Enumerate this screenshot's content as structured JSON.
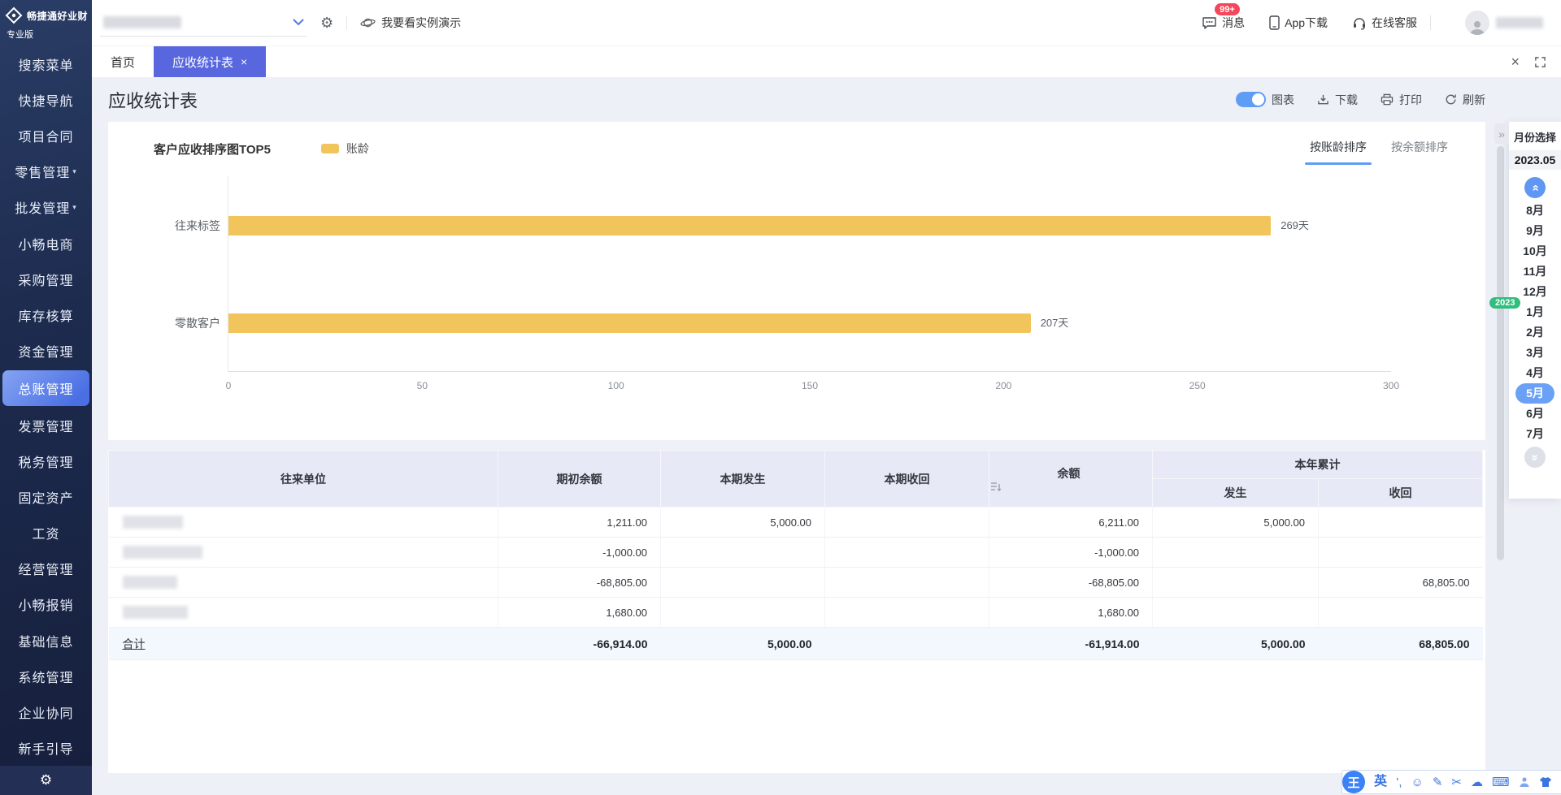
{
  "app": {
    "brand": "畅捷通好业财",
    "edition": "专业版"
  },
  "topbar": {
    "demo": "我要看实例演示",
    "messages": "消息",
    "messages_badge": "99+",
    "app_download": "App下载",
    "online_service": "在线客服"
  },
  "sidebar": {
    "items": [
      {
        "label": "搜索菜单"
      },
      {
        "label": "快捷导航"
      },
      {
        "label": "项目合同"
      },
      {
        "label": "零售管理",
        "caret": true
      },
      {
        "label": "批发管理",
        "caret": true
      },
      {
        "label": "小畅电商"
      },
      {
        "label": "采购管理"
      },
      {
        "label": "库存核算"
      },
      {
        "label": "资金管理"
      },
      {
        "label": "总账管理",
        "active": true
      },
      {
        "label": "发票管理"
      },
      {
        "label": "税务管理"
      },
      {
        "label": "固定资产"
      },
      {
        "label": "工资"
      },
      {
        "label": "经营管理"
      },
      {
        "label": "小畅报销"
      },
      {
        "label": "基础信息"
      },
      {
        "label": "系统管理"
      },
      {
        "label": "企业协同"
      },
      {
        "label": "新手引导"
      }
    ]
  },
  "tabs": {
    "home": "首页",
    "current": "应收统计表"
  },
  "page": {
    "title": "应收统计表"
  },
  "toolbar": {
    "chart_toggle": "图表",
    "download": "下载",
    "print": "打印",
    "refresh": "刷新"
  },
  "chart_data": {
    "type": "bar",
    "orientation": "horizontal",
    "title": "客户应收排序图TOP5",
    "legend": [
      "账龄"
    ],
    "categories": [
      "往来标签",
      "零散客户"
    ],
    "values": [
      269,
      207
    ],
    "unit": "天",
    "xlim": [
      0,
      300
    ],
    "xticks": [
      0,
      50,
      100,
      150,
      200,
      250,
      300
    ],
    "grid": false,
    "bar_color": "#F2C55C",
    "sort_tabs": [
      "按账龄排序",
      "按余额排序"
    ],
    "active_sort": "按账龄排序"
  },
  "table": {
    "headers": [
      "往来单位",
      "期初余额",
      "本期发生",
      "本期收回",
      "余额"
    ],
    "group_header": "本年累计",
    "sub_headers": [
      "发生",
      "收回"
    ],
    "rows": [
      {
        "name_redacted": true,
        "blur_w": 74,
        "cells": [
          "1,211.00",
          "5,000.00",
          "",
          "6,211.00",
          "5,000.00",
          ""
        ]
      },
      {
        "name_redacted": true,
        "blur_w": 98,
        "cells": [
          "-1,000.00",
          "",
          "",
          "-1,000.00",
          "",
          ""
        ]
      },
      {
        "name_redacted": true,
        "blur_w": 67,
        "cells": [
          "-68,805.00",
          "",
          "",
          "-68,805.00",
          "",
          "68,805.00"
        ]
      },
      {
        "name_redacted": true,
        "blur_w": 80,
        "cells": [
          "1,680.00",
          "",
          "",
          "1,680.00",
          "",
          ""
        ]
      }
    ],
    "total": {
      "label": "合计",
      "cells": [
        "-66,914.00",
        "5,000.00",
        "",
        "-61,914.00",
        "5,000.00",
        "68,805.00"
      ]
    }
  },
  "month_panel": {
    "title": "月份选择",
    "value": "2023.05",
    "year_badge": "2023",
    "months": [
      "8月",
      "9月",
      "10月",
      "11月",
      "12月",
      "1月",
      "2月",
      "3月",
      "4月",
      "5月",
      "6月",
      "7月"
    ],
    "selected": "5月"
  },
  "ime": {
    "logo": "王",
    "lang": "英"
  },
  "icons": {
    "close": "×",
    "chevrons": "»",
    "caret_down": "▾",
    "gear": "⚙"
  },
  "colors": {
    "accent_blue": "#5867DE",
    "toggle_blue": "#5F9CF6",
    "bar_yellow": "#F2C55C",
    "month_selected": "#6AA1F6",
    "year_badge_green": "#2FBE7D",
    "badge_red": "#F5475A",
    "sidebar_bg": "#1D2B4E",
    "table_header_bg": "#E7EAF6"
  }
}
